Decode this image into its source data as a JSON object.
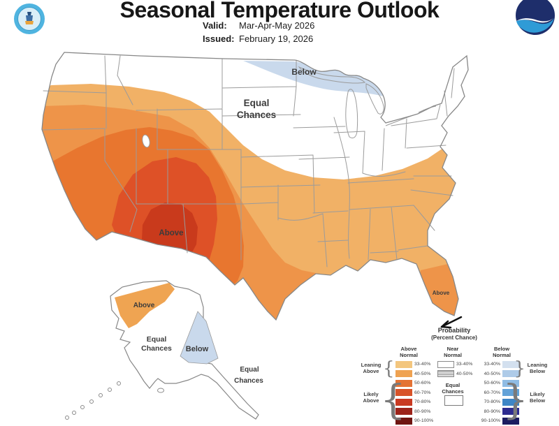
{
  "header": {
    "title": "Seasonal Temperature Outlook",
    "valid_label": "Valid:",
    "valid_value": "Mar-Apr-May 2026",
    "issued_label": "Issued:",
    "issued_value": "February 19, 2026"
  },
  "logos": {
    "left": "national-weather-service",
    "right": "noaa"
  },
  "map_labels": {
    "conus_equal_line1": "Equal",
    "conus_equal_line2": "Chances",
    "conus_below": "Below",
    "conus_above": "Above",
    "florida_above": "Above",
    "alaska_above": "Above",
    "alaska_equal_line1": "Equal",
    "alaska_equal_line2": "Chances",
    "alaska_below": "Below",
    "alaska_se_equal_line1": "Equal",
    "alaska_se_equal_line2": "Chances"
  },
  "map_regions": [
    {
      "area": "Southwest / South-central US",
      "outlook": "Above normal (33-80% chance, peak over NM/W TX)"
    },
    {
      "area": "Northern Minnesota / Upper Great Lakes",
      "outlook": "Below normal (33-40%)"
    },
    {
      "area": "Northern tier & Northeast",
      "outlook": "Equal Chances"
    },
    {
      "area": "Florida peninsula",
      "outlook": "Above normal (40-50%)"
    },
    {
      "area": "Northern Alaska",
      "outlook": "Above normal"
    },
    {
      "area": "South-central Alaska",
      "outlook": "Below normal"
    },
    {
      "area": "Interior & Southeast Alaska",
      "outlook": "Equal Chances"
    }
  ],
  "legend": {
    "title_line1": "Probability",
    "title_line2": "(Percent Chance)",
    "above_header_line1": "Above",
    "above_header_line2": "Normal",
    "near_header_line1": "Near",
    "near_header_line2": "Normal",
    "below_header_line1": "Below",
    "below_header_line2": "Normal",
    "ranges": [
      "33-40%",
      "40-50%",
      "50-60%",
      "60-70%",
      "70-80%",
      "80-90%",
      "90-100%"
    ],
    "near_ranges": [
      "33-40%",
      "40-50%"
    ],
    "equal_line1": "Equal",
    "equal_line2": "Chances",
    "leaning_above_line1": "Leaning",
    "leaning_above_line2": "Above",
    "likely_above_line1": "Likely",
    "likely_above_line2": "Above",
    "leaning_below_line1": "Leaning",
    "leaning_below_line2": "Below",
    "likely_below_line1": "Likely",
    "likely_below_line2": "Below"
  },
  "colors": {
    "map_band_33_40": "#F1B166",
    "map_band_40_50": "#EE9449",
    "map_band_50_60": "#E8762F",
    "map_band_60_70": "#DE5127",
    "map_band_70_80": "#C93A1C",
    "below_blob": "#C9D9EC",
    "alaska_above": "#EFA452",
    "outline": "#8a8a8a",
    "state_line": "#9b9b9b",
    "legend_above": [
      "#F3C67E",
      "#EFA251",
      "#E47335",
      "#D85329",
      "#C93A22",
      "#9C231A",
      "#6F1511"
    ],
    "legend_below": [
      "#D3E0EF",
      "#AECBE8",
      "#8FBCE4",
      "#62A2D8",
      "#3E86C6",
      "#2D2B8F",
      "#1B1C60"
    ],
    "legend_near": [
      "#FFFFFF",
      "#BDBDBD"
    ]
  }
}
